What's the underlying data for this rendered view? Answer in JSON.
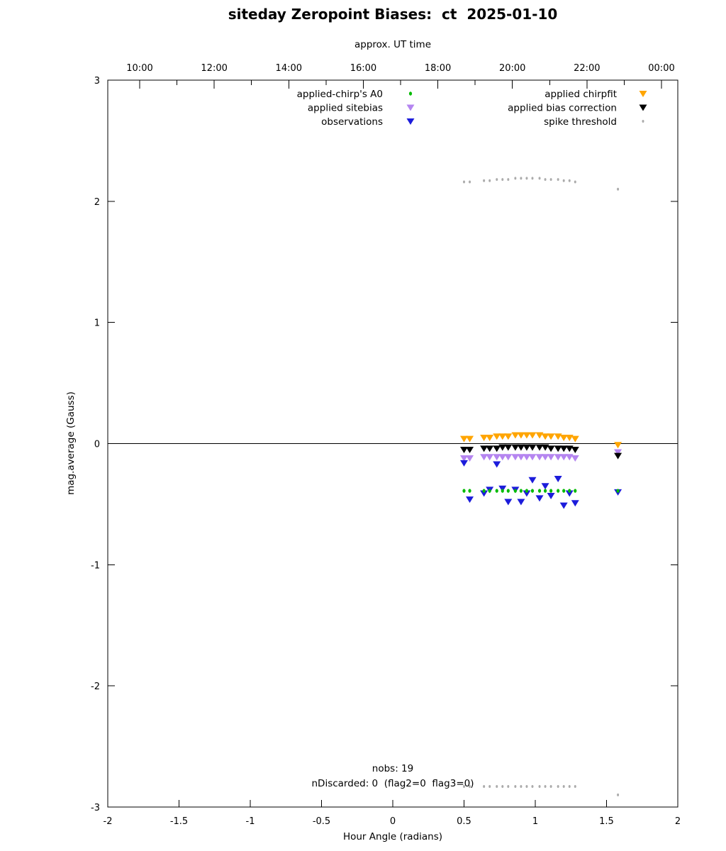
{
  "chart_data": {
    "type": "scatter",
    "title": "siteday Zeropoint Biases:  ct  2025-01-10",
    "x2_axis": {
      "label": "approx. UT time",
      "tick_labels": [
        "10:00",
        "12:00",
        "14:00",
        "16:00",
        "18:00",
        "20:00",
        "22:00",
        "00:00"
      ]
    },
    "x_axis": {
      "label": "Hour Angle (radians)",
      "tick_labels": [
        "-2",
        "-1.5",
        "-1",
        "-0.5",
        "0",
        "0.5",
        "1",
        "1.5",
        "2"
      ],
      "min": -2,
      "max": 2
    },
    "y_axis": {
      "label": "mag.average (Gauss)",
      "tick_labels": [
        "3",
        "2",
        "1",
        "0",
        "-1",
        "-2",
        "-3"
      ],
      "min": -3,
      "max": 3
    },
    "grid": false,
    "zero_line": true,
    "background": "#ffffff",
    "annotations": {
      "nobs": "nobs: 19",
      "ndiscarded": "nDiscarded: 0  (flag2=0  flag3=0)"
    },
    "x": [
      0.5,
      0.54,
      0.64,
      0.68,
      0.73,
      0.77,
      0.81,
      0.86,
      0.9,
      0.94,
      0.98,
      1.03,
      1.07,
      1.11,
      1.16,
      1.2,
      1.24,
      1.28,
      1.58
    ],
    "series": [
      {
        "name": "applied-chirp's A0",
        "marker": "dot",
        "color": "#00bb00",
        "values": [
          -0.39,
          -0.39,
          -0.39,
          -0.39,
          -0.39,
          -0.39,
          -0.39,
          -0.39,
          -0.39,
          -0.39,
          -0.39,
          -0.39,
          -0.39,
          -0.39,
          -0.39,
          -0.39,
          -0.39,
          -0.39,
          -0.39
        ]
      },
      {
        "name": "applied sitebias",
        "marker": "triangle-down",
        "color": "#b585f0",
        "values": [
          -0.12,
          -0.12,
          -0.11,
          -0.11,
          -0.11,
          -0.11,
          -0.11,
          -0.11,
          -0.11,
          -0.11,
          -0.11,
          -0.11,
          -0.11,
          -0.11,
          -0.11,
          -0.11,
          -0.11,
          -0.12,
          -0.07
        ]
      },
      {
        "name": "observations",
        "marker": "triangle-down",
        "color": "#1c1cdb",
        "values": [
          -0.16,
          -0.46,
          -0.41,
          -0.38,
          -0.17,
          -0.37,
          -0.48,
          -0.38,
          -0.48,
          -0.41,
          -0.3,
          -0.45,
          -0.35,
          -0.43,
          -0.29,
          -0.51,
          -0.41,
          -0.49,
          -0.4
        ]
      },
      {
        "name": "applied chirpfit",
        "marker": "triangle-down",
        "color": "#ffa500",
        "values": [
          0.04,
          0.04,
          0.05,
          0.05,
          0.06,
          0.06,
          0.06,
          0.07,
          0.07,
          0.07,
          0.07,
          0.07,
          0.06,
          0.06,
          0.06,
          0.05,
          0.05,
          0.04,
          -0.01
        ]
      },
      {
        "name": "applied bias correction",
        "marker": "triangle-down",
        "color": "#000000",
        "values": [
          -0.05,
          -0.05,
          -0.04,
          -0.04,
          -0.04,
          -0.03,
          -0.03,
          -0.03,
          -0.03,
          -0.03,
          -0.03,
          -0.03,
          -0.03,
          -0.04,
          -0.04,
          -0.04,
          -0.04,
          -0.05,
          -0.1
        ]
      },
      {
        "name": "spike threshold",
        "marker": "small-dot",
        "color": "#ababab",
        "values": [
          2.16,
          2.16,
          2.17,
          2.17,
          2.18,
          2.18,
          2.18,
          2.19,
          2.19,
          2.19,
          2.19,
          2.19,
          2.18,
          2.18,
          2.18,
          2.17,
          2.17,
          2.16,
          2.1
        ]
      },
      {
        "name": "spike threshold",
        "marker": "small-dot",
        "color": "#ababab",
        "values": [
          -2.83,
          -2.83,
          -2.83,
          -2.83,
          -2.83,
          -2.83,
          -2.83,
          -2.83,
          -2.83,
          -2.83,
          -2.83,
          -2.83,
          -2.83,
          -2.83,
          -2.83,
          -2.83,
          -2.83,
          -2.83,
          -2.9
        ]
      }
    ],
    "legend": {
      "position": "top-inside",
      "left_column": [
        "applied-chirp's A0",
        "applied sitebias",
        "observations"
      ],
      "right_column": [
        "applied chirpfit",
        "applied bias correction",
        "spike threshold"
      ]
    }
  }
}
